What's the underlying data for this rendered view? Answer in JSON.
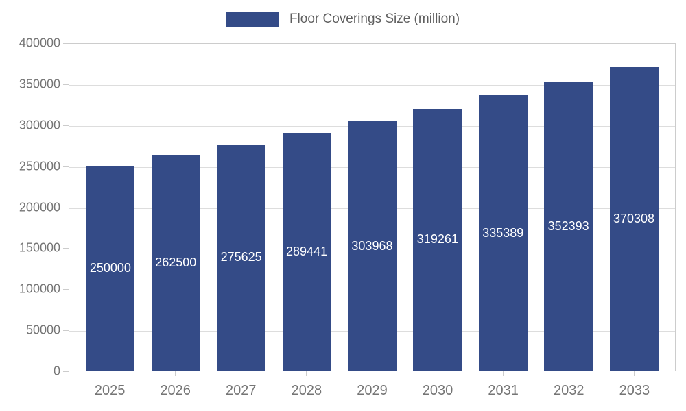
{
  "chart_data": {
    "type": "bar",
    "title": "Floor Coverings Size (million)",
    "categories": [
      "2025",
      "2026",
      "2027",
      "2028",
      "2029",
      "2030",
      "2031",
      "2032",
      "2033"
    ],
    "values": [
      250000,
      262500,
      275625,
      289441,
      303968,
      319261,
      335389,
      352393,
      370308
    ],
    "bar_labels": [
      "250000",
      "262500",
      "275625",
      "289441",
      "303968",
      "319261",
      "335389",
      "352393",
      "370308"
    ],
    "xlabel": "",
    "ylabel": "",
    "ylim": [
      0,
      400000
    ],
    "yticks": [
      0,
      50000,
      100000,
      150000,
      200000,
      250000,
      300000,
      350000,
      400000
    ],
    "ytick_labels": [
      "0",
      "50000",
      "100000",
      "150000",
      "200000",
      "250000",
      "300000",
      "350000",
      "400000"
    ],
    "grid": true,
    "legend_position": "top",
    "bar_color": "#344b87",
    "legend": [
      {
        "label": "Floor Coverings Size (million)",
        "color": "#344b87"
      }
    ]
  },
  "colors": {
    "bar": "#344b87",
    "bar_label_text": "#ffffff",
    "grid_line": "#dddddd",
    "plot_border": "#cccccc",
    "tick_text": "#757575",
    "legend_text": "#5f5f5f",
    "background": "#ffffff"
  }
}
